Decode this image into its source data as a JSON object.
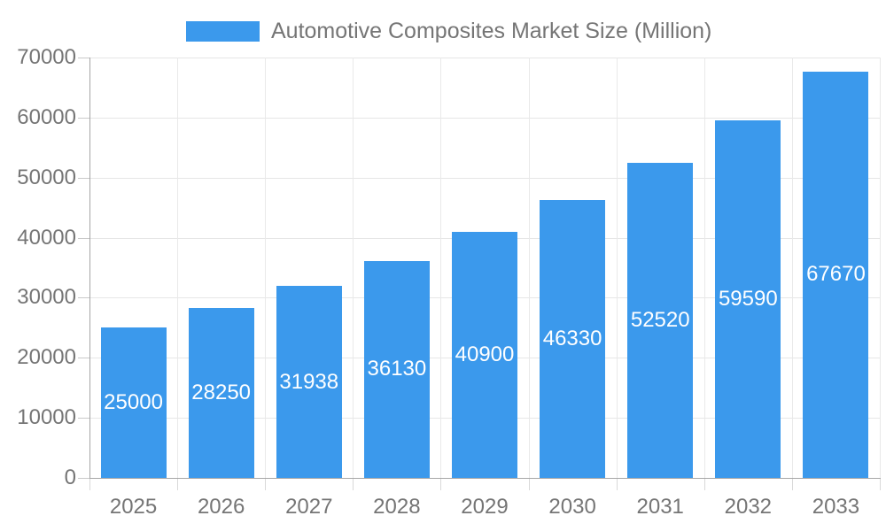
{
  "chart_data": {
    "type": "bar",
    "title": "Automotive Composites Market Size (Million)",
    "categories": [
      "2025",
      "2026",
      "2027",
      "2028",
      "2029",
      "2030",
      "2031",
      "2032",
      "2033"
    ],
    "series": [
      {
        "name": "Automotive Composites Market Size (Million)",
        "values": [
          25000,
          28250,
          31938,
          36130,
          40900,
          46330,
          52520,
          59590,
          67670
        ]
      }
    ],
    "value_labels": [
      "25000",
      "28250",
      "31938",
      "36130",
      "40900",
      "46330",
      "52520",
      "59590",
      "67670"
    ],
    "xlabel": "",
    "ylabel": "",
    "ylim": [
      0,
      70000
    ],
    "y_tick_step": 10000,
    "y_tick_labels": [
      "0",
      "10000",
      "20000",
      "30000",
      "40000",
      "50000",
      "60000",
      "70000"
    ],
    "grid": true,
    "legend_position": "top"
  },
  "colors": {
    "bar": "#3b99ec",
    "value_label": "#ffffff",
    "axis_text": "#757575",
    "grid_line": "#e6e6e6",
    "axis_line": "#a6a6a6"
  }
}
